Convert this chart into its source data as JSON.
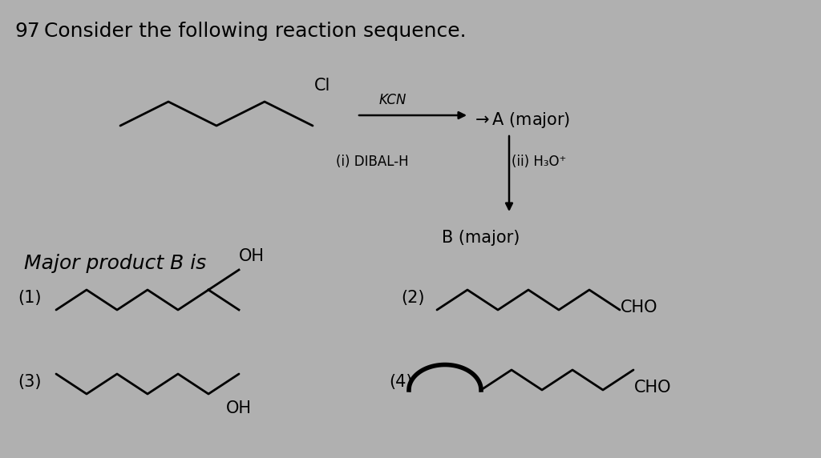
{
  "background_color": "#b0b0b0",
  "title_number": "97",
  "title_text": "Consider the following reaction sequence.",
  "question_text": "Major product B is",
  "fig_width": 10.24,
  "fig_height": 5.72,
  "dpi": 100,
  "text_color": "#000000",
  "font_size_title": 18,
  "font_size_body": 16,
  "font_size_label": 15,
  "font_size_small": 13
}
